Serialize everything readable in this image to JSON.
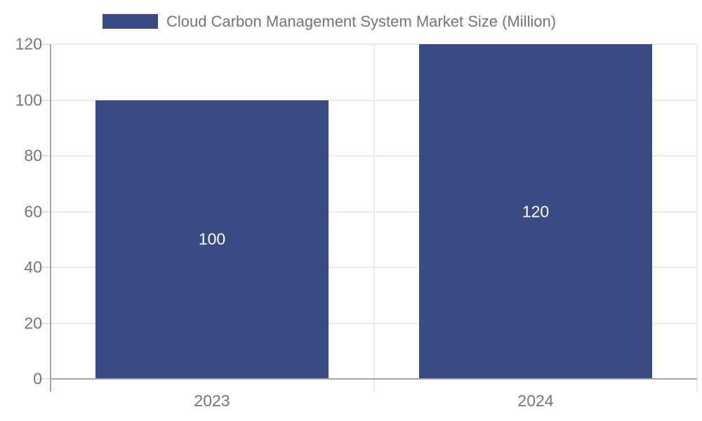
{
  "legend": {
    "label": "Cloud Carbon Management System Market Size (Million)"
  },
  "colors": {
    "bar": "#3A4A82",
    "axis_line": "#a6a6a6",
    "gridline": "#ebebeb",
    "tick_mark": "#e3e3e3",
    "axis_text": "#757575",
    "bar_label_text": "#ffffff",
    "background": "#ffffff"
  },
  "chart_data": {
    "type": "bar",
    "title": "Cloud Carbon Management System Market Size (Million)",
    "series_name": "Cloud Carbon Management System Market Size (Million)",
    "categories": [
      "2023",
      "2024"
    ],
    "values": [
      100,
      120
    ],
    "data_labels": [
      "100",
      "120"
    ],
    "data_label_position": "inside-center",
    "xlabel": "",
    "ylabel": "",
    "ylim": [
      0,
      120
    ],
    "yticks": [
      0,
      20,
      40,
      60,
      80,
      100,
      120
    ],
    "grid": true,
    "legend_position": "top"
  }
}
